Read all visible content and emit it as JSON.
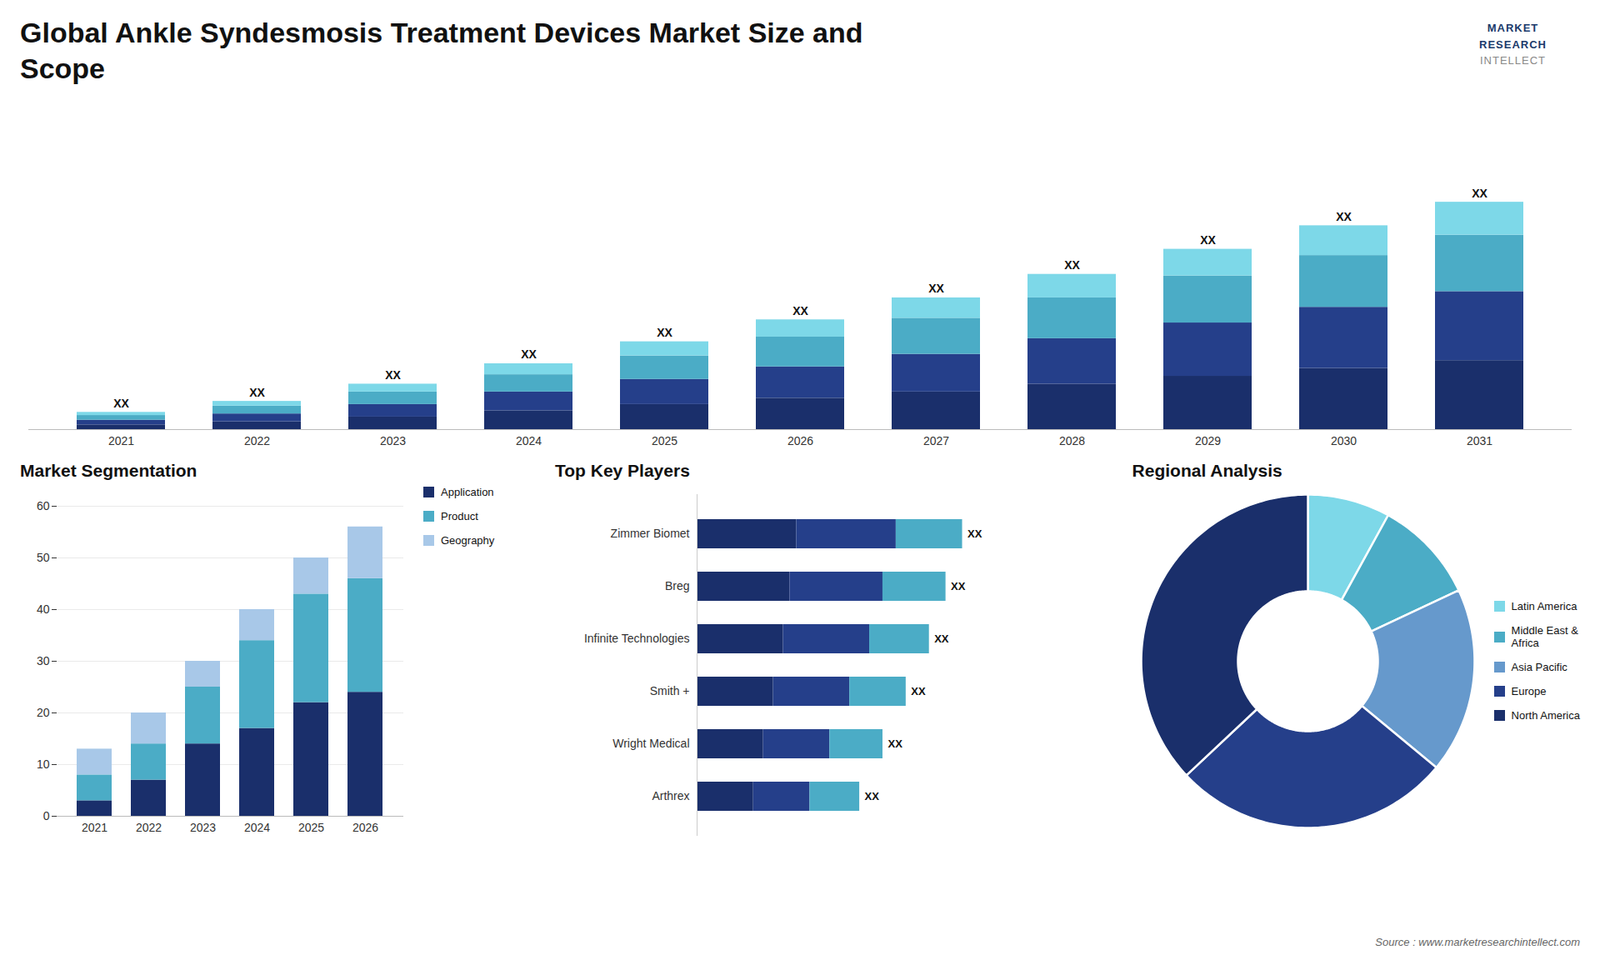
{
  "title": "Global Ankle Syndesmosis Treatment Devices Market Size and\nScope",
  "annotations": [
    "MARKET",
    "RESEARCH",
    "INTELLECT",
    "Source : www.marketresearchintellect.com"
  ],
  "chart_data": [
    {
      "type": "bar",
      "stacked": true,
      "categories": [
        "2021",
        "2022",
        "2023",
        "2024",
        "2025",
        "2026",
        "2027",
        "2028",
        "2029",
        "2030",
        "2031"
      ],
      "series": [
        {
          "color": "#1a2f6b",
          "values": [
            1.5,
            2.5,
            4,
            6,
            8,
            10,
            12,
            14.5,
            17,
            19.5,
            22
          ]
        },
        {
          "color": "#253f8a",
          "values": [
            1.5,
            2.5,
            4,
            6,
            8,
            10,
            12,
            14.5,
            17,
            19.5,
            22
          ]
        },
        {
          "color": "#4bacc6",
          "values": [
            1.5,
            2.5,
            4,
            5.5,
            7.5,
            9.5,
            11.5,
            13,
            15,
            16.5,
            18
          ]
        },
        {
          "color": "#7dd8e8",
          "values": [
            1,
            1.5,
            2.5,
            3.5,
            4.5,
            5.5,
            6.5,
            7.5,
            8.5,
            9.5,
            10.5
          ]
        }
      ],
      "ylim": [
        0,
        101.5
      ],
      "tick_labels": "x",
      "grid": false,
      "annotations": [
        {
          "x": "2021",
          "text": "XX"
        },
        {
          "x": "2022",
          "text": "XX"
        },
        {
          "x": "2023",
          "text": "XX"
        },
        {
          "x": "2024",
          "text": "XX"
        },
        {
          "x": "2025",
          "text": "XX"
        },
        {
          "x": "2026",
          "text": "XX"
        },
        {
          "x": "2027",
          "text": "XX"
        },
        {
          "x": "2028",
          "text": "XX"
        },
        {
          "x": "2029",
          "text": "XX"
        },
        {
          "x": "2030",
          "text": "XX"
        },
        {
          "x": "2031",
          "text": "XX"
        }
      ]
    },
    {
      "type": "bar",
      "title": "Market Segmentation",
      "stacked": true,
      "categories": [
        "2021",
        "2022",
        "2023",
        "2024",
        "2025",
        "2026"
      ],
      "series": [
        {
          "name": "Application",
          "color": "#1a2f6b",
          "values": [
            3,
            7,
            14,
            17,
            22,
            24
          ]
        },
        {
          "name": "Product",
          "color": "#4bacc6",
          "values": [
            5,
            7,
            11,
            17,
            21,
            22
          ]
        },
        {
          "name": "Geography",
          "color": "#a8c8e8",
          "values": [
            5,
            6,
            5,
            6,
            7,
            10
          ]
        }
      ],
      "ylim": [
        0,
        60
      ],
      "yticks": [
        0,
        10,
        20,
        30,
        40,
        50,
        60
      ],
      "grid": true,
      "legend": "right"
    },
    {
      "type": "bar",
      "title": "Top Key Players",
      "orientation": "horizontal",
      "stacked": true,
      "categories": [
        "Zimmer Biomet",
        "Breg",
        "Infinite Technologies",
        "Smith +",
        "Wright Medical",
        "Arthrex"
      ],
      "series": [
        {
          "color": "#1a2f6b",
          "values": [
            3.0,
            2.8,
            2.6,
            2.3,
            2.0,
            1.7
          ]
        },
        {
          "color": "#253f8a",
          "values": [
            3.0,
            2.8,
            2.6,
            2.3,
            2.0,
            1.7
          ]
        },
        {
          "color": "#4bacc6",
          "values": [
            2.0,
            1.9,
            1.8,
            1.7,
            1.6,
            1.5
          ]
        }
      ],
      "xlim": [
        0,
        10.8
      ],
      "tick_labels": "y",
      "grid": false,
      "annotations": [
        {
          "y": "Zimmer Biomet",
          "text": "XX"
        },
        {
          "y": "Breg",
          "text": "XX"
        },
        {
          "y": "Infinite Technologies",
          "text": "XX"
        },
        {
          "y": "Smith +",
          "text": "XX"
        },
        {
          "y": "Wright Medical",
          "text": "XX"
        },
        {
          "y": "Arthrex",
          "text": "XX"
        }
      ]
    },
    {
      "type": "pie",
      "title": "Regional Analysis",
      "categories": [
        "Latin America",
        "Middle East &\nAfrica",
        "Asia Pacific",
        "Europe",
        "North America"
      ],
      "values": [
        8,
        10,
        18,
        27,
        37
      ],
      "colors": [
        "#7dd8e8",
        "#4bacc6",
        "#6699cc",
        "#253f8a",
        "#1a2f6b"
      ],
      "legend": "right"
    }
  ]
}
